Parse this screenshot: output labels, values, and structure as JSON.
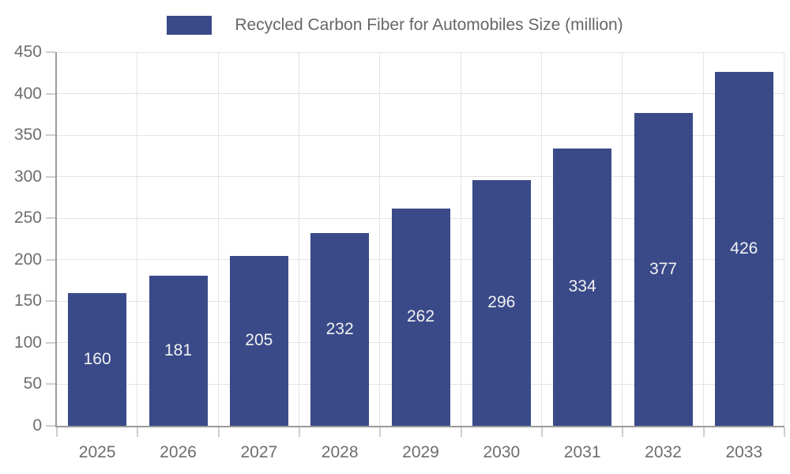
{
  "chart_data": {
    "type": "bar",
    "title": "Recycled Carbon Fiber for Automobiles Size (million)",
    "legend_label": "Recycled Carbon Fiber for Automobiles Size (million)",
    "legend_position": "top-center",
    "categories": [
      "2025",
      "2026",
      "2027",
      "2028",
      "2029",
      "2030",
      "2031",
      "2032",
      "2033"
    ],
    "values": [
      160,
      181,
      205,
      232,
      262,
      296,
      334,
      377,
      426
    ],
    "xlabel": "",
    "ylabel": "",
    "ylim": [
      0,
      450
    ],
    "ytick_step": 50,
    "ytick_labels": [
      "0",
      "50",
      "100",
      "150",
      "200",
      "250",
      "300",
      "350",
      "400",
      "450"
    ],
    "grid": "horizontal and vertical light gray",
    "value_labels_inside_bars": true,
    "colors": {
      "bar": "#3a4a89",
      "value_label": "#f2f2f2",
      "axis_line": "#9b9b9b",
      "gridline": "#e3e3e3",
      "tick_mark": "#cfcfcf",
      "tick_label": "#6d6d6d",
      "legend_text": "#666666"
    }
  }
}
